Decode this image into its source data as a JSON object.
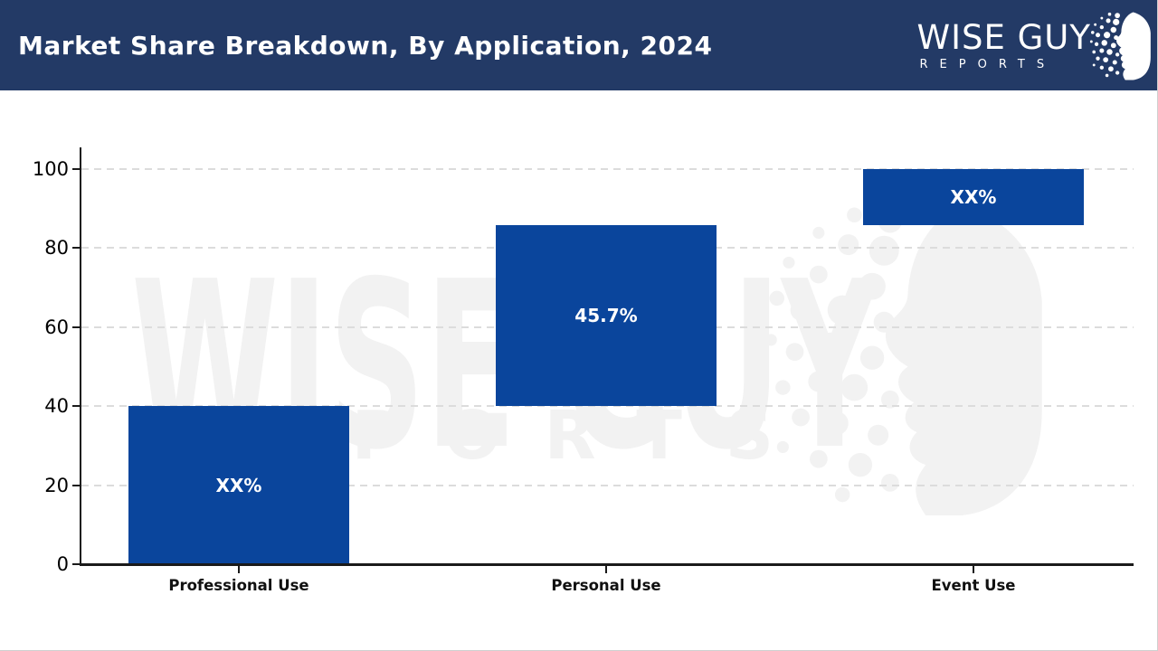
{
  "header": {
    "title": "Market Share Breakdown, By Application, 2024",
    "logo": {
      "brand_top": "WISE GUY",
      "brand_bottom": "REPORTS",
      "face_icon": "dotted-face-profile"
    }
  },
  "watermark": {
    "text_large": "WISE GUY",
    "text_small": "REPORTS",
    "face_icon": "dotted-face-profile"
  },
  "colors": {
    "header_bg": "#233a66",
    "title_text": "#ffffff",
    "bar": "#0a459c",
    "bar_label_text": "#ffffff",
    "gridline": "#dcdcdc",
    "axis": "#1a1a1a",
    "watermark": "#f2f2f2"
  },
  "chart_data": {
    "type": "bar",
    "subtype": "floating-waterfall",
    "title": "Market Share Breakdown, By Application, 2024",
    "unit": "percent",
    "categories": [
      "Professional Use",
      "Personal Use",
      "Event Use"
    ],
    "bars": [
      {
        "category": "Professional Use",
        "start": 0,
        "end": 40,
        "label": "XX%"
      },
      {
        "category": "Personal Use",
        "start": 40,
        "end": 85.7,
        "label": "45.7%",
        "value": 45.7
      },
      {
        "category": "Event Use",
        "start": 85.7,
        "end": 100,
        "label": "XX%"
      }
    ],
    "yticks": [
      0,
      20,
      40,
      60,
      80,
      100
    ],
    "ylim": [
      0,
      105
    ],
    "xlabel": "",
    "ylabel": "",
    "grid": "horizontal-dashed",
    "legend": "none"
  }
}
